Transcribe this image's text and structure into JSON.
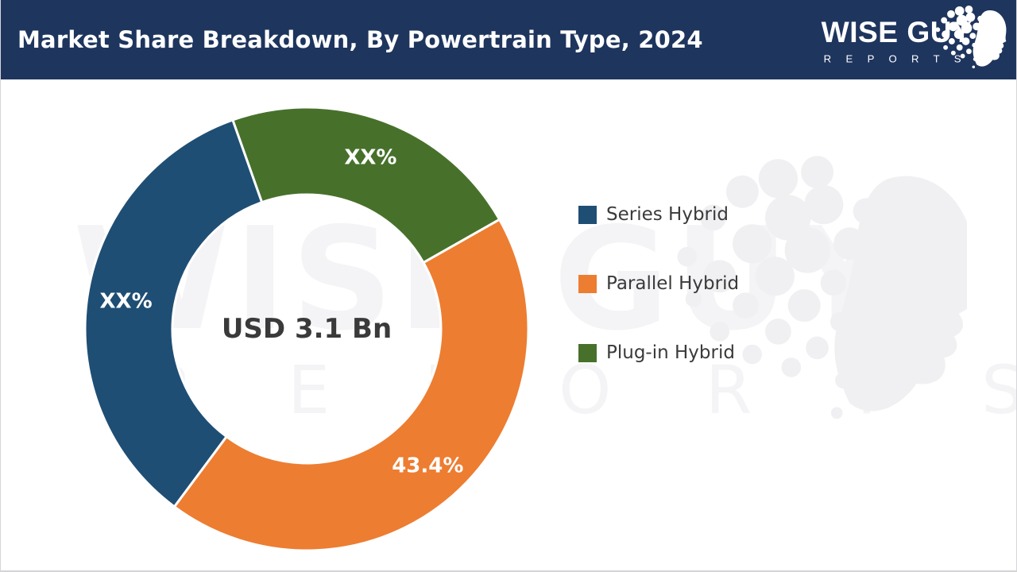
{
  "header": {
    "title": "Market Share Breakdown, By Powertrain Type, 2024",
    "logo": {
      "line1": "WISE GUY",
      "line2": "REPORTS"
    }
  },
  "watermark": {
    "line1": "WISE GUY",
    "line2": "REPORTS"
  },
  "chart_data": {
    "type": "pie",
    "subtype": "donut",
    "title": "Market Share Breakdown, By Powertrain Type, 2024",
    "center_label": "USD 3.1 Bn",
    "start_angle_deg": -19.5,
    "slices": [
      {
        "name": "Plug-in Hybrid",
        "value_pct": 22.2,
        "value_display": "XX%",
        "color": "#47712b"
      },
      {
        "name": "Parallel Hybrid",
        "value_pct": 43.4,
        "value_display": "43.4%",
        "color": "#ed7d31"
      },
      {
        "name": "Series Hybrid",
        "value_pct": 34.4,
        "value_display": "XX%",
        "color": "#1f4e74"
      }
    ],
    "legend": [
      {
        "label": "Series Hybrid",
        "color": "#1f4e74"
      },
      {
        "label": "Parallel Hybrid",
        "color": "#ed7d31"
      },
      {
        "label": "Plug-in Hybrid",
        "color": "#47712b"
      }
    ],
    "legend_position": "right",
    "colors": {
      "header_bg": "#1e355e",
      "text": "#3a3a3a",
      "watermark": "#f0f0f3"
    }
  }
}
